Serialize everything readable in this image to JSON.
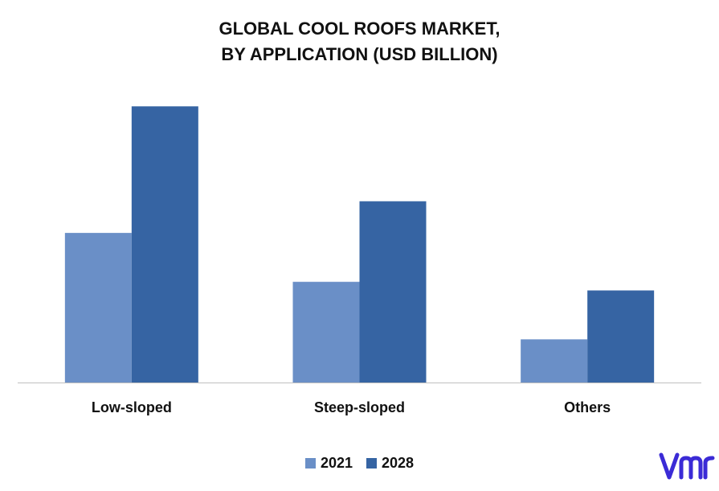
{
  "chart_data": {
    "type": "bar",
    "title_lines": [
      "GLOBAL COOL ROOFS MARKET,",
      "BY APPLICATION (USD BILLION)"
    ],
    "categories": [
      "Low-sloped",
      "Steep-sloped",
      "Others"
    ],
    "series": [
      {
        "name": "2021",
        "color": "#6a8fc7",
        "values": [
          5.2,
          3.5,
          1.5
        ]
      },
      {
        "name": "2028",
        "color": "#3664a3",
        "values": [
          9.6,
          6.3,
          3.2
        ]
      }
    ],
    "ylim": [
      0,
      10
    ],
    "grid": false,
    "legend_position": "bottom-center"
  },
  "brand": {
    "logo_color": "#3b2bd6",
    "logo_icon": "vmr-logo-icon"
  }
}
